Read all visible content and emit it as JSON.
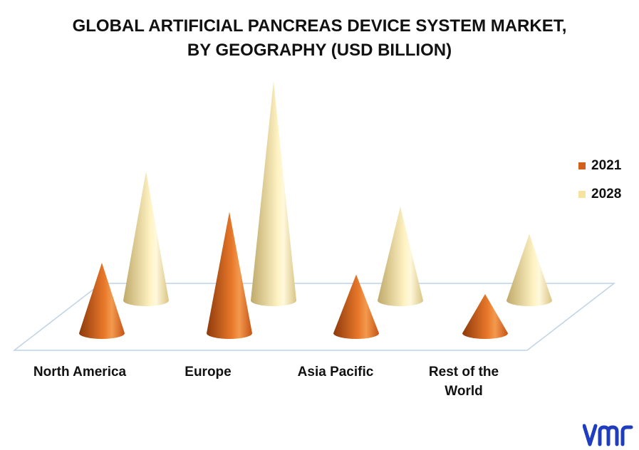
{
  "chart_data": {
    "type": "bar",
    "title_line1": "GLOBAL ARTIFICIAL PANCREAS DEVICE SYSTEM MARKET,",
    "title_line2": "BY GEOGRAPHY (USD BILLION)",
    "categories": [
      {
        "line1": "North America",
        "line2": ""
      },
      {
        "line1": "Europe",
        "line2": ""
      },
      {
        "line1": "Asia Pacific",
        "line2": ""
      },
      {
        "line1": "Rest of the",
        "line2": "World"
      }
    ],
    "series": [
      {
        "name": "2021",
        "color": "#D2601A",
        "values": [
          0.9,
          1.55,
          0.75,
          0.5
        ]
      },
      {
        "name": "2028",
        "color": "#F5E3A0",
        "values": [
          1.65,
          2.8,
          1.2,
          0.85
        ]
      }
    ],
    "ylim": [
      0,
      3
    ],
    "grid": false,
    "legend_position": "right",
    "shape": "cone"
  },
  "brand": {
    "logo_text": "vmr",
    "logo_color": "#1F3DBE"
  }
}
